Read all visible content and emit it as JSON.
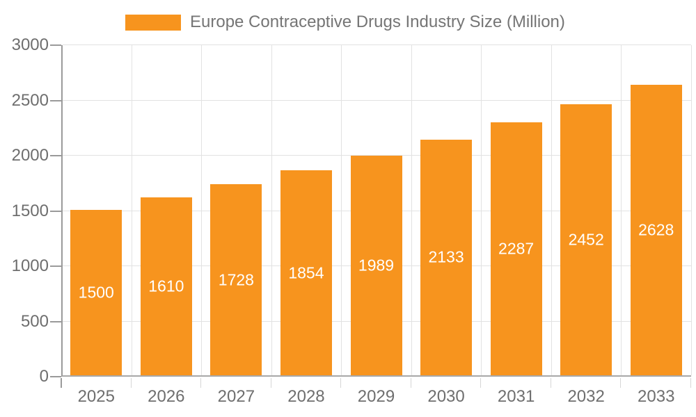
{
  "legend": {
    "label": "Europe Contraceptive Drugs Industry Size (Million)"
  },
  "chart_data": {
    "type": "bar",
    "title": "Europe Contraceptive Drugs Industry Size (Million)",
    "series_name": "Europe Contraceptive Drugs Industry Size (Million)",
    "categories": [
      "2025",
      "2026",
      "2027",
      "2028",
      "2029",
      "2030",
      "2031",
      "2032",
      "2033"
    ],
    "values": [
      1500,
      1610,
      1728,
      1854,
      1989,
      2133,
      2287,
      2452,
      2628
    ],
    "xlabel": "",
    "ylabel": "",
    "ylim": [
      0,
      3000
    ],
    "y_ticks": [
      0,
      500,
      1000,
      1500,
      2000,
      2500,
      3000
    ],
    "grid": true,
    "legend_position": "top",
    "bar_color": "#F7941E",
    "value_label_color": "#FFFFFF",
    "axis_label_color": "#6E6E6E",
    "legend_text_color": "#757575",
    "gridline_color": "#E2E2E2",
    "axis_line_color": "#9A9A9A"
  }
}
